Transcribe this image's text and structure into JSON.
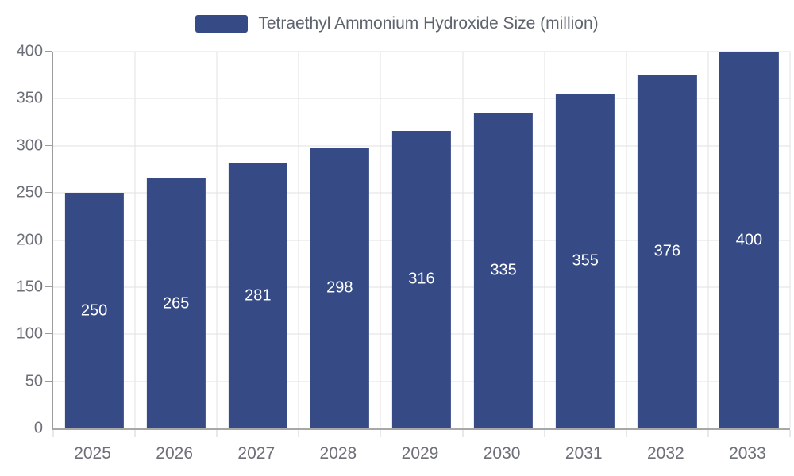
{
  "legend": {
    "label": "Tetraethyl Ammonium Hydroxide Size (million)",
    "swatch_color": "#364A85"
  },
  "chart_data": {
    "type": "bar",
    "title": "",
    "xlabel": "",
    "ylabel": "",
    "categories": [
      "2025",
      "2026",
      "2027",
      "2028",
      "2029",
      "2030",
      "2031",
      "2032",
      "2033"
    ],
    "values": [
      250,
      265,
      281,
      298,
      316,
      335,
      355,
      376,
      400
    ],
    "series_name": "Tetraethyl Ammonium Hydroxide Size (million)",
    "ylim": [
      0,
      400
    ],
    "yticks": [
      0,
      50,
      100,
      150,
      200,
      250,
      300,
      350,
      400
    ],
    "grid": true,
    "legend_position": "top-center",
    "bar_color": "#364A85",
    "value_label_color": "#FFFFFF",
    "axis_label_color": "#6E7079",
    "grid_color": "#E2E2E2",
    "bar_width_fraction": 0.72
  }
}
